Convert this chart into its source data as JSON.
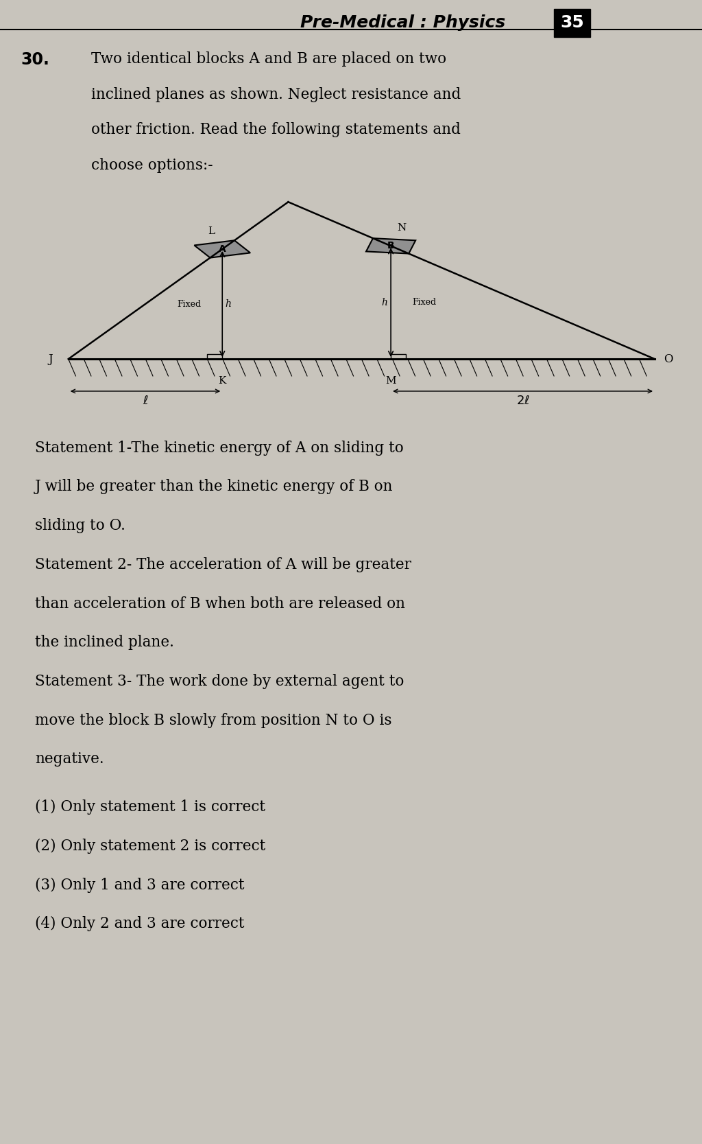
{
  "bg_color": "#c8c4bc",
  "header_text": "Pre-Medical : Physics",
  "header_num": "35",
  "header_font_size": 18,
  "question_num": "30.",
  "question_text_lines": [
    "Two identical blocks A and B are placed on two",
    "inclined planes as shown. Neglect resistance and",
    "other friction. Read the following statements and",
    "choose options:-"
  ],
  "statement_lines": [
    "Statement 1-The kinetic energy of A on sliding to",
    "J will be greater than the kinetic energy of B on",
    "sliding to O.",
    "Statement 2- The acceleration of A will be greater",
    "than acceleration of B when both are released on",
    "the inclined plane.",
    "Statement 3- The work done by external agent to",
    "move the block B slowly from position N to O is",
    "negative."
  ],
  "options": [
    "(1) Only statement 1 is correct",
    "(2) Only statement 2 is correct",
    "(3) Only 1 and 3 are correct",
    "(4) Only 2 and 3 are correct"
  ]
}
